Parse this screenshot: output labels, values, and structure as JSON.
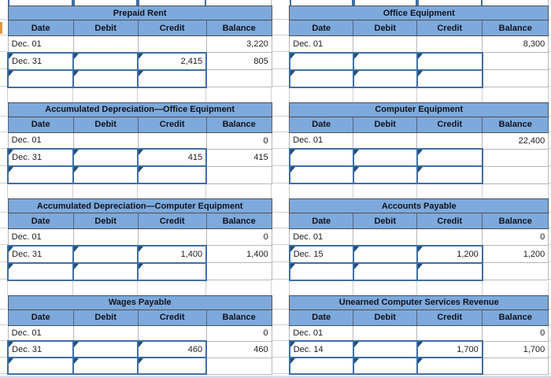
{
  "sheet": {
    "description": "General ledger T-account worksheet",
    "colors": {
      "header_blue": "#7da9dc",
      "answer_cell_border": "#3f6fa5",
      "input_marker": "#1e4e79",
      "bottom_strip": "#d5deef",
      "edge_marker_orange": "#e0953f",
      "gridline_gray": "#b7b7b7"
    }
  },
  "columns": [
    "Date",
    "Debit",
    "Credit",
    "Balance"
  ],
  "tables": [
    {
      "title": "Prepaid Rent",
      "rows": [
        {
          "date": "Dec. 01",
          "debit": "",
          "credit": "",
          "balance": "3,220",
          "input": false
        },
        {
          "date": "Dec. 31",
          "debit": "",
          "credit": "2,415",
          "balance": "805",
          "input": true
        },
        {
          "date": "",
          "debit": "",
          "credit": "",
          "balance": "",
          "input": true
        }
      ]
    },
    {
      "title": "Office Equipment",
      "rows": [
        {
          "date": "Dec. 01",
          "debit": "",
          "credit": "",
          "balance": "8,300",
          "input": false
        },
        {
          "date": "",
          "debit": "",
          "credit": "",
          "balance": "",
          "input": true
        },
        {
          "date": "",
          "debit": "",
          "credit": "",
          "balance": "",
          "input": true
        }
      ]
    },
    {
      "title": "Accumulated Depreciation—Office Equipment",
      "rows": [
        {
          "date": "Dec. 01",
          "debit": "",
          "credit": "",
          "balance": "0",
          "input": false
        },
        {
          "date": "Dec. 31",
          "debit": "",
          "credit": "415",
          "balance": "415",
          "input": true
        },
        {
          "date": "",
          "debit": "",
          "credit": "",
          "balance": "",
          "input": true
        }
      ]
    },
    {
      "title": "Computer Equipment",
      "rows": [
        {
          "date": "Dec. 01",
          "debit": "",
          "credit": "",
          "balance": "22,400",
          "input": false
        },
        {
          "date": "",
          "debit": "",
          "credit": "",
          "balance": "",
          "input": true
        },
        {
          "date": "",
          "debit": "",
          "credit": "",
          "balance": "",
          "input": true
        }
      ]
    },
    {
      "title": "Accumulated Depreciation—Computer Equipment",
      "rows": [
        {
          "date": "Dec. 01",
          "debit": "",
          "credit": "",
          "balance": "0",
          "input": false
        },
        {
          "date": "Dec. 31",
          "debit": "",
          "credit": "1,400",
          "balance": "1,400",
          "input": true
        },
        {
          "date": "",
          "debit": "",
          "credit": "",
          "balance": "",
          "input": true
        }
      ]
    },
    {
      "title": "Accounts Payable",
      "rows": [
        {
          "date": "Dec. 01",
          "debit": "",
          "credit": "",
          "balance": "0",
          "input": false
        },
        {
          "date": "Dec. 15",
          "debit": "",
          "credit": "1,200",
          "balance": "1,200",
          "input": true
        },
        {
          "date": "",
          "debit": "",
          "credit": "",
          "balance": "",
          "input": true
        }
      ]
    },
    {
      "title": "Wages Payable",
      "rows": [
        {
          "date": "Dec. 01",
          "debit": "",
          "credit": "",
          "balance": "0",
          "input": false
        },
        {
          "date": "Dec. 31",
          "debit": "",
          "credit": "460",
          "balance": "460",
          "input": true
        },
        {
          "date": "",
          "debit": "",
          "credit": "",
          "balance": "",
          "input": true
        }
      ]
    },
    {
      "title": "Unearned Computer Services Revenue",
      "rows": [
        {
          "date": "Dec. 01",
          "debit": "",
          "credit": "",
          "balance": "0",
          "input": false
        },
        {
          "date": "Dec. 14",
          "debit": "",
          "credit": "1,700",
          "balance": "1,700",
          "input": true
        },
        {
          "date": "",
          "debit": "",
          "credit": "",
          "balance": "",
          "input": true
        }
      ]
    }
  ]
}
